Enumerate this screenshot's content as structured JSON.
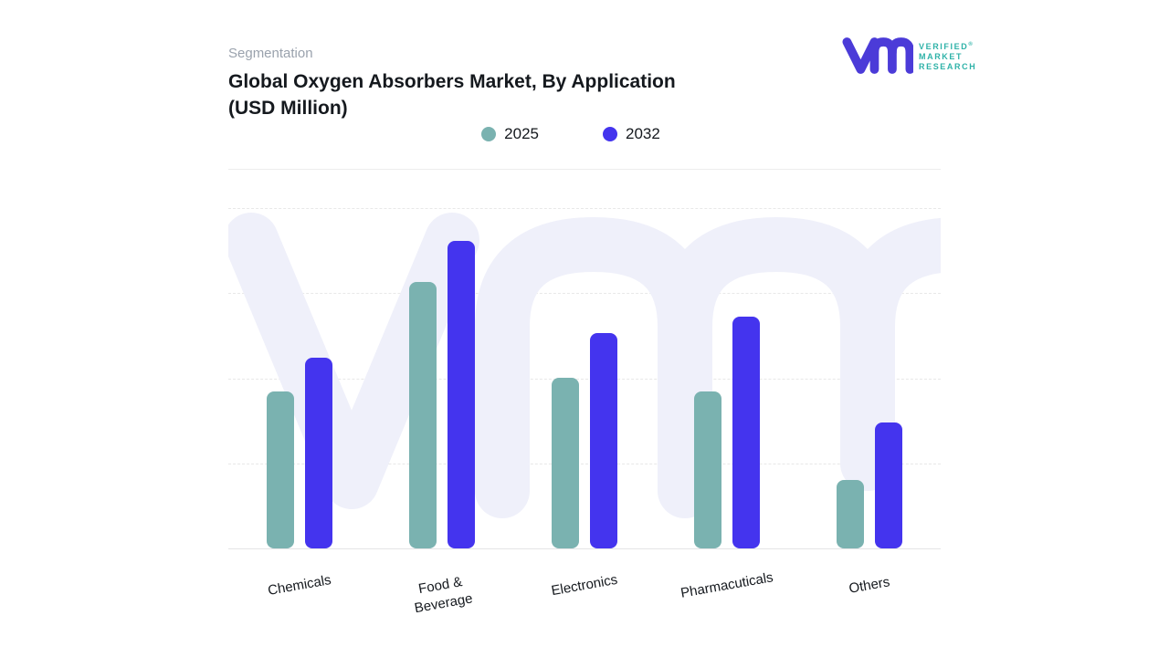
{
  "header": {
    "eyebrow": "Segmentation",
    "title_line1": "Global Oxygen Absorbers Market, By Application",
    "title_line2": "(USD Million)"
  },
  "logo": {
    "line1": "VERIFIED",
    "registered": "®",
    "line2": "MARKET",
    "line3": "RESEARCH",
    "mark_color": "#4B3BD8",
    "text_color": "#2EB2A8"
  },
  "legend": [
    {
      "label": "2025",
      "color": "#7AB2B0"
    },
    {
      "label": "2032",
      "color": "#4434EE"
    }
  ],
  "chart_data": {
    "type": "bar",
    "title": "Global Oxygen Absorbers Market, By Application (USD Million)",
    "categories": [
      "Chemicals",
      "Food & Beverage",
      "Electronics",
      "Pharmacuticals",
      "Others"
    ],
    "x_labels": [
      "Chemicals",
      "Food &\nBeverage",
      "Electronics",
      "Pharmacuticals",
      "Others"
    ],
    "series": [
      {
        "name": "2025",
        "color": "#7AB2B0",
        "values": [
          46,
          78,
          50,
          46,
          20
        ]
      },
      {
        "name": "2032",
        "color": "#4434EE",
        "values": [
          56,
          90,
          63,
          68,
          37
        ]
      }
    ],
    "xlabel": "",
    "ylabel": "",
    "ylim": [
      0,
      100
    ],
    "y_tick_labels_shown": false,
    "grid": "horizontal dashed, 4 lines",
    "legend_position": "top center",
    "watermark_color": "#EFF0FA"
  }
}
